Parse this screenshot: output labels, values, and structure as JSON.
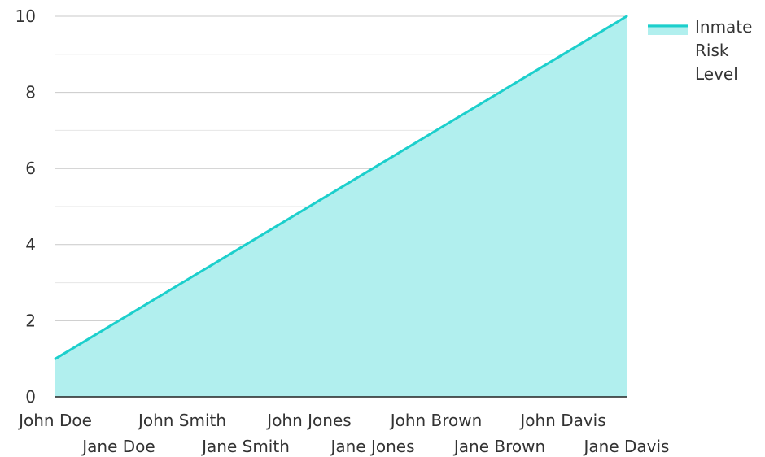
{
  "chart_data": {
    "type": "area",
    "categories": [
      "John Doe",
      "Jane Doe",
      "John Smith",
      "Jane Smith",
      "John Jones",
      "Jane Jones",
      "John Brown",
      "Jane Brown",
      "John Davis",
      "Jane Davis"
    ],
    "series": [
      {
        "name": "Inmate Risk Level",
        "values": [
          1,
          2,
          3,
          4,
          5,
          6,
          7,
          8,
          9,
          10
        ],
        "line_color": "#1ccfcc",
        "fill_color": "#b1efee"
      }
    ],
    "ylim": [
      0,
      10
    ],
    "y_ticks": [
      0,
      2,
      4,
      6,
      8,
      10
    ],
    "y_minor_ticks": [
      1,
      3,
      5,
      7,
      9
    ],
    "grid": true,
    "legend_position": "right",
    "legend_lines": [
      "Inmate",
      "Risk",
      "Level"
    ],
    "xlabel": "",
    "ylabel": "",
    "title": ""
  }
}
